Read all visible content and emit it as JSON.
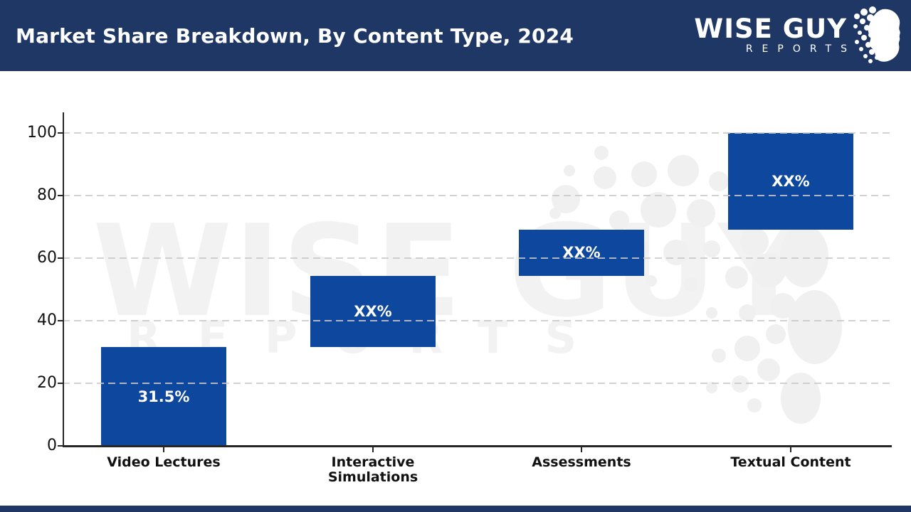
{
  "header": {
    "title": "Market Share Breakdown, By Content Type, 2024",
    "logo": {
      "name": "WISE GUY",
      "tagline": "REPORTS"
    }
  },
  "watermark": {
    "line1": "WISE GUY",
    "line2": "REPORTS"
  },
  "chart_data": {
    "type": "bar",
    "subtype": "waterfall",
    "title": "Market Share Breakdown, By Content Type, 2024",
    "categories": [
      "Video Lectures",
      "Interactive Simulations",
      "Assessments",
      "Textual Content"
    ],
    "segments": [
      {
        "category": "Video Lectures",
        "start": 0,
        "end": 31.5,
        "value": 31.5,
        "label": "31.5%"
      },
      {
        "category": "Interactive Simulations",
        "start": 31.5,
        "end": 54.3,
        "value": 22.8,
        "label": "XX%"
      },
      {
        "category": "Assessments",
        "start": 54.3,
        "end": 69.2,
        "value": 14.9,
        "label": "XX%"
      },
      {
        "category": "Textual Content",
        "start": 69.2,
        "end": 100,
        "value": 30.8,
        "label": "XX%"
      }
    ],
    "y_ticks": [
      0,
      20,
      40,
      60,
      80,
      100
    ],
    "ylim": [
      0,
      106
    ],
    "xlabel": "",
    "ylabel": "",
    "legend": "none",
    "grid": "horizontal-dashed",
    "bar_color": "#0d479e",
    "value_label_color": "#ffffff"
  }
}
